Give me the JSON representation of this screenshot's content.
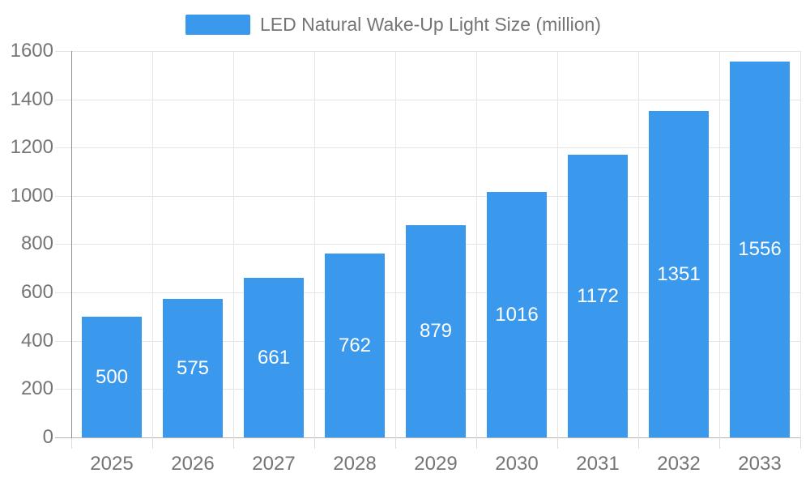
{
  "chart_data": {
    "type": "bar",
    "title": "LED Natural Wake-Up Light Size (million)",
    "categories": [
      "2025",
      "2026",
      "2027",
      "2028",
      "2029",
      "2030",
      "2031",
      "2032",
      "2033"
    ],
    "values": [
      500,
      575,
      661,
      762,
      879,
      1016,
      1172,
      1351,
      1556
    ],
    "xlabel": "",
    "ylabel": "",
    "ylim": [
      0,
      1600
    ],
    "ytick_step": 200,
    "ytick_labels": [
      "0",
      "200",
      "400",
      "600",
      "800",
      "1000",
      "1200",
      "1400",
      "1600"
    ],
    "grid": true,
    "legend_position": "top-center",
    "value_labels": "inside-center"
  },
  "legend": {
    "label": "LED Natural Wake-Up Light Size (million)"
  },
  "colors": {
    "bar": "#3A99EC",
    "grid_line": "#e4e4e4",
    "axis_line": "#8f8f8f",
    "baseline": "#b3b3b3",
    "tick": "#dcdcdc",
    "axis_text": "#757575",
    "bar_label_text": "#ffffff",
    "background": "#ffffff"
  }
}
